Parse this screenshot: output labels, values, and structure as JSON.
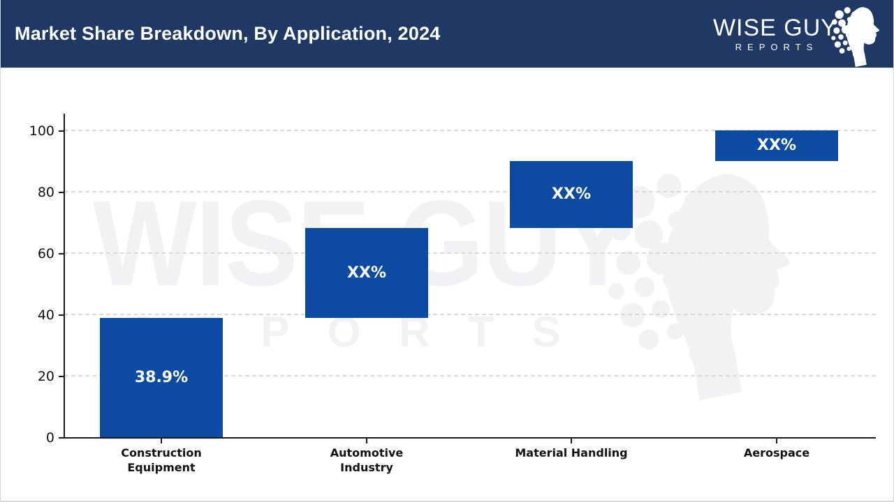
{
  "header": {
    "title": "Market Share Breakdown, By Application, 2024",
    "bg_color": "#1f3864"
  },
  "brand": {
    "name": "WISE GUY",
    "sub": "REPORTS",
    "head_icon": "dotted-head-profile"
  },
  "watermark": {
    "line1": "WISE GUY",
    "line2": "REPORTS"
  },
  "chart_data": {
    "type": "bar",
    "subtype": "waterfall-stacked-percentage",
    "title": "Market Share Breakdown, By Application, 2024",
    "unit": "%",
    "categories": [
      "Construction Equipment",
      "Automotive Industry",
      "Material Handling",
      "Aerospace"
    ],
    "category_label_lines": [
      [
        "Construction",
        "Equipment"
      ],
      [
        "Automotive",
        "Industry"
      ],
      [
        "Material Handling"
      ],
      [
        "Aerospace"
      ]
    ],
    "segments": [
      {
        "category": "Construction Equipment",
        "start": 0,
        "end": 38.9,
        "label": "38.9%"
      },
      {
        "category": "Automotive Industry",
        "start": 38.9,
        "end": 68.1,
        "label": "XX%"
      },
      {
        "category": "Material Handling",
        "start": 68.1,
        "end": 90,
        "label": "XX%"
      },
      {
        "category": "Aerospace",
        "start": 90,
        "end": 100,
        "label": "XX%"
      }
    ],
    "ylim": [
      0,
      100
    ],
    "yticks": [
      0,
      20,
      40,
      60,
      80,
      100
    ],
    "grid": "horizontal-dashed",
    "legend": "none",
    "bar_color": "#0d4ba2",
    "bar_label_color": "#ffffff",
    "axis_color": "#1a1a1a",
    "gridline_color": "#d9d9d9"
  }
}
